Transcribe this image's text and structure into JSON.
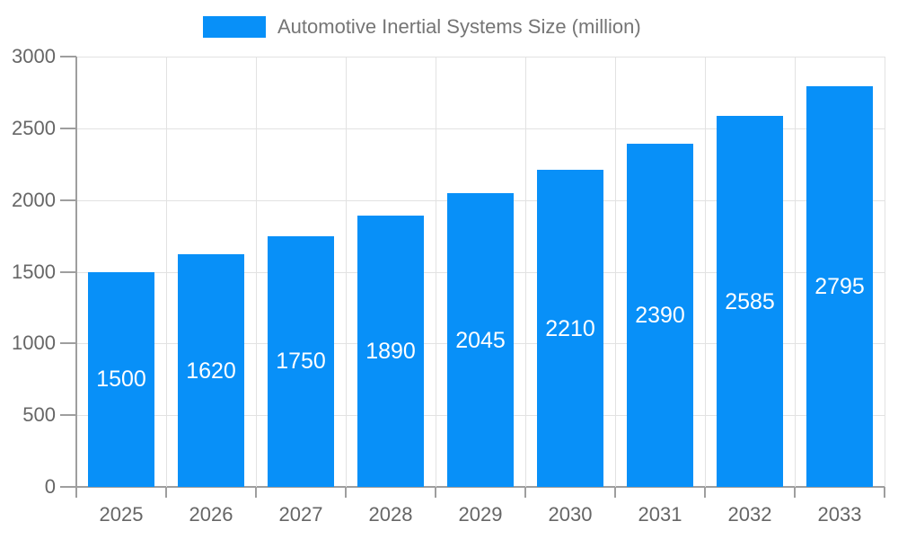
{
  "chart_data": {
    "type": "bar",
    "title": "Automotive Inertial Systems Size (million)",
    "categories": [
      "2025",
      "2026",
      "2027",
      "2028",
      "2029",
      "2030",
      "2031",
      "2032",
      "2033"
    ],
    "values": [
      1500,
      1620,
      1750,
      1890,
      2045,
      2210,
      2390,
      2585,
      2795
    ],
    "series": [
      {
        "name": "Automotive Inertial Systems Size (million)",
        "values": [
          1500,
          1620,
          1750,
          1890,
          2045,
          2210,
          2390,
          2585,
          2795
        ]
      }
    ],
    "xlabel": "",
    "ylabel": "",
    "ylim": [
      0,
      3000
    ],
    "yticks": [
      0,
      500,
      1000,
      1500,
      2000,
      2500,
      3000
    ],
    "grid": true,
    "legend_position": "top-center",
    "value_labels_position": "inside-center",
    "colors": {
      "bar": "#0890f8",
      "value_label": "#ffffff",
      "axis_text": "#666666",
      "legend_text": "#757575",
      "grid_line": "#e2e2e2",
      "axis_line": "#9e9e9e",
      "background": "#ffffff"
    }
  }
}
